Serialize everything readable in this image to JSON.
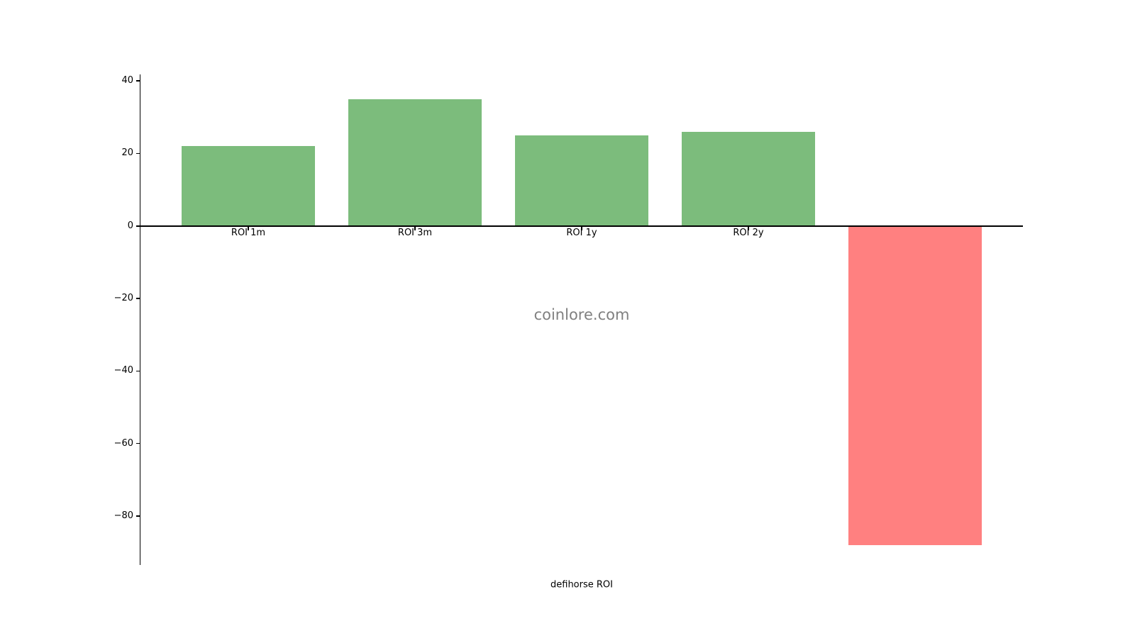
{
  "page": {
    "background": "#ffffff"
  },
  "watermark": {
    "text": "coinlore.com",
    "color": "#808080"
  },
  "chart_data": {
    "type": "bar",
    "categories": [
      "ROI 1m",
      "ROI 3m",
      "ROI 1y",
      "ROI 2y",
      ""
    ],
    "values": [
      22,
      35,
      25,
      26,
      -88
    ],
    "bar_colors": [
      "#7cbc7c",
      "#7cbc7c",
      "#7cbc7c",
      "#7cbc7c",
      "#ff8080"
    ],
    "title": "",
    "xlabel": "defihorse ROI",
    "ylabel": "",
    "ylim": [
      -93.5,
      41.8
    ],
    "yticks": [
      40,
      20,
      0,
      -20,
      -40,
      -60,
      -80
    ],
    "grid": false,
    "legend": null,
    "axis_color": "#000000",
    "tick_label_color": "#000000"
  }
}
